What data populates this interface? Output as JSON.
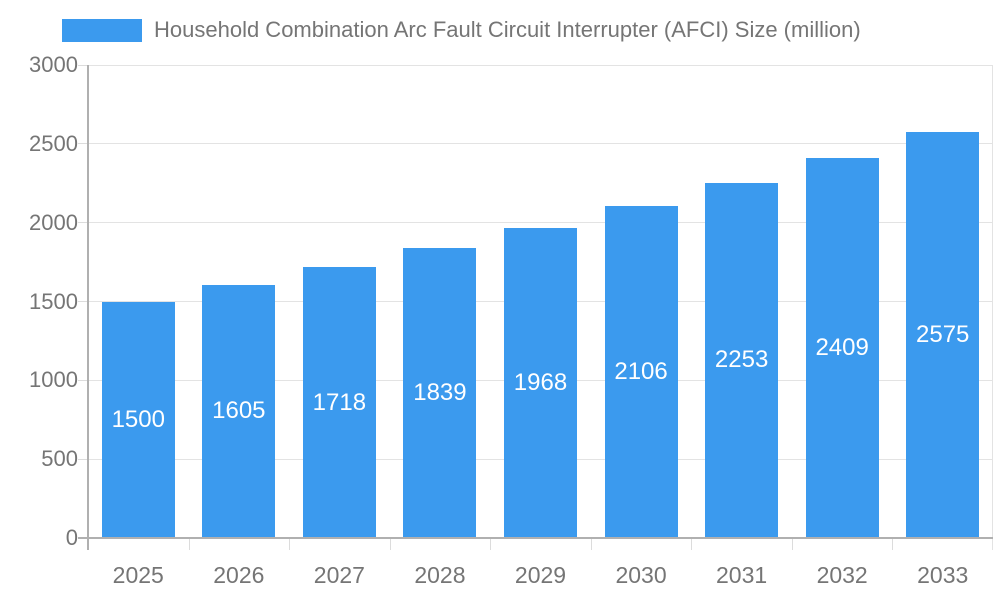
{
  "legend": {
    "label": "Household Combination Arc Fault Circuit Interrupter (AFCI) Size (million)"
  },
  "colors": {
    "bar": "#3B9AEE",
    "grid": "#E3E3E3",
    "axis": "#B0B0B0",
    "minor_tick": "#DCDCDC",
    "text": "#757575",
    "bar_label_text": "#FFFFFF",
    "background": "#FFFFFF"
  },
  "chart_data": {
    "type": "bar",
    "title": "Household Combination Arc Fault Circuit Interrupter (AFCI) Size (million)",
    "categories": [
      "2025",
      "2026",
      "2027",
      "2028",
      "2029",
      "2030",
      "2031",
      "2032",
      "2033"
    ],
    "values": [
      1500,
      1605,
      1718,
      1839,
      1968,
      2106,
      2253,
      2409,
      2575
    ],
    "xlabel": "",
    "ylabel": "",
    "ylim": [
      0,
      3000
    ],
    "yticks": [
      0,
      500,
      1000,
      1500,
      2000,
      2500,
      3000
    ],
    "grid": true,
    "legend_position": "top-left",
    "bar_label_position": "inside-center"
  }
}
